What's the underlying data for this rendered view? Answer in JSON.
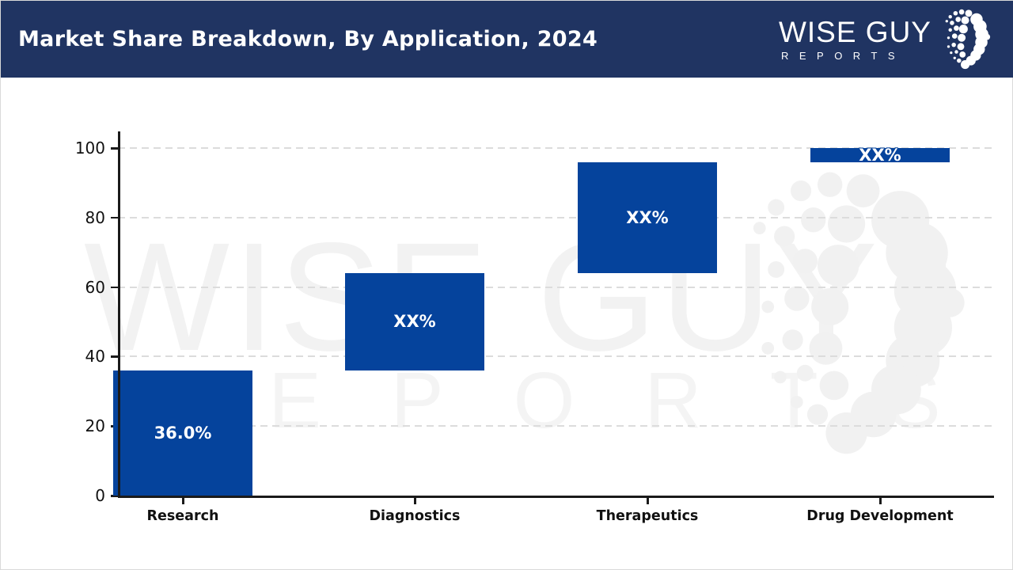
{
  "header": {
    "title": "Market Share Breakdown, By Application, 2024",
    "logo": {
      "line1": "WISE GUY",
      "line2": "REPORTS"
    }
  },
  "watermark": {
    "line1": "WISE GUY",
    "line2": "REPORTS"
  },
  "colors": {
    "header_bg": "#203462",
    "bar": "#05439c",
    "grid": "#dcdcdc",
    "axis": "#1a1a1a",
    "watermark": "#f2f2f2",
    "bar_label_text": "#ffffff",
    "page_border": "#d9d9d9"
  },
  "chart_data": {
    "type": "bar",
    "variant": "floating-waterfall",
    "title": "Market Share Breakdown, By Application, 2024",
    "categories": [
      "Research",
      "Diagnostics",
      "Therapeutics",
      "Drug Development"
    ],
    "segments": [
      {
        "category": "Research",
        "start": 0,
        "end": 36,
        "label": "36.0%"
      },
      {
        "category": "Diagnostics",
        "start": 36,
        "end": 64,
        "label": "XX%"
      },
      {
        "category": "Therapeutics",
        "start": 64,
        "end": 96,
        "label": "XX%"
      },
      {
        "category": "Drug Development",
        "start": 96,
        "end": 100,
        "label": "XX%"
      }
    ],
    "ylim": [
      0,
      100
    ],
    "yticks": [
      0,
      20,
      40,
      60,
      80,
      100
    ],
    "xlabel": "",
    "ylabel": "",
    "grid": "dashed-horizontal",
    "legend": "none",
    "bar_color": "#05439c"
  }
}
